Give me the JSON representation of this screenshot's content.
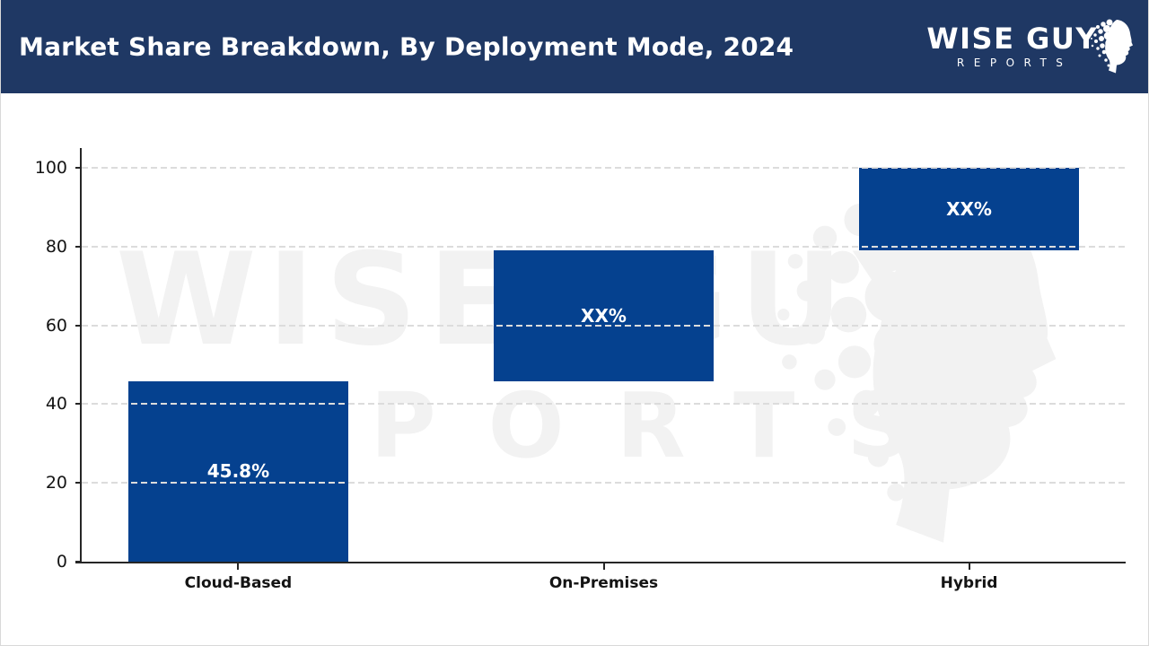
{
  "header": {
    "title": "Market Share Breakdown, By Deployment Mode, 2024",
    "brand": {
      "line1": "WISE GUY",
      "line2": "REPORTS"
    }
  },
  "watermark": {
    "line1": "WISE GUY",
    "line2": "REPORTS"
  },
  "colors": {
    "header_bg": "#1F3864",
    "bar": "#05418F",
    "bar_label": "#FFFFFF",
    "grid": "#DCDCDC",
    "axis": "#262626",
    "watermark": "#F2F2F2"
  },
  "chart_data": {
    "type": "bar",
    "subtype": "waterfall-breakdown",
    "title": "Market Share Breakdown, By Deployment Mode, 2024",
    "categories": [
      "Cloud-Based",
      "On-Premises",
      "Hybrid"
    ],
    "series": [
      {
        "name": "Cloud-Based",
        "start": 0,
        "end": 45.8,
        "label": "45.8%"
      },
      {
        "name": "On-Premises",
        "start": 45.8,
        "end": 79.0,
        "label": "XX%"
      },
      {
        "name": "Hybrid",
        "start": 79.0,
        "end": 100,
        "label": "XX%"
      }
    ],
    "xlabel": "",
    "ylabel": "",
    "ylim": [
      0,
      105
    ],
    "yticks": [
      0,
      20,
      40,
      60,
      80,
      100
    ],
    "grid": "horizontal-dashed",
    "legend": "none",
    "bar_width_fraction": 0.6
  }
}
